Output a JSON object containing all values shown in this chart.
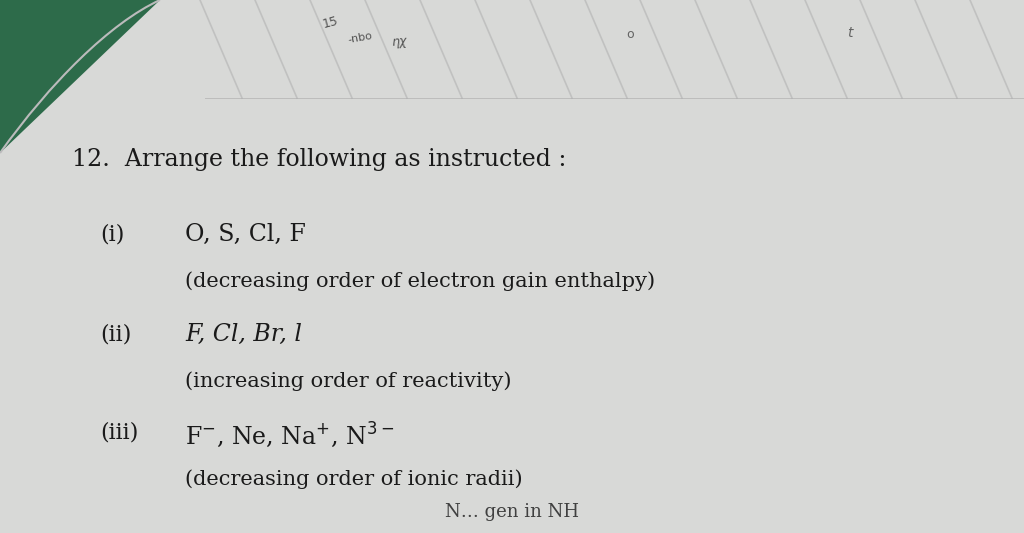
{
  "bg_color": "#2d6b4a",
  "paper_color": "#d8d9d7",
  "title_num": "12.",
  "title_text": "Arrange the following as instructed :",
  "items": [
    {
      "roman": "(i)",
      "elements": "O, S, Cl, F",
      "description": "(decreasing order of electron gain enthalpy)"
    },
    {
      "roman": "(ii)",
      "elements": "F, Cl, Br, l",
      "description": "(increasing order of reactivity)"
    },
    {
      "roman": "(iii)",
      "elements_mathtext": "F$^{-}$, Ne, Na$^{+}$, N$^{3-}$",
      "description": "(decreasing order of ionic radii)"
    }
  ],
  "footer_text": "N… gen in NH",
  "title_fontsize": 17,
  "roman_fontsize": 16,
  "elements_fontsize": 17,
  "desc_fontsize": 15,
  "text_color": "#1a1a1a",
  "line_color": "#888888",
  "font_family": "DejaVu Serif"
}
